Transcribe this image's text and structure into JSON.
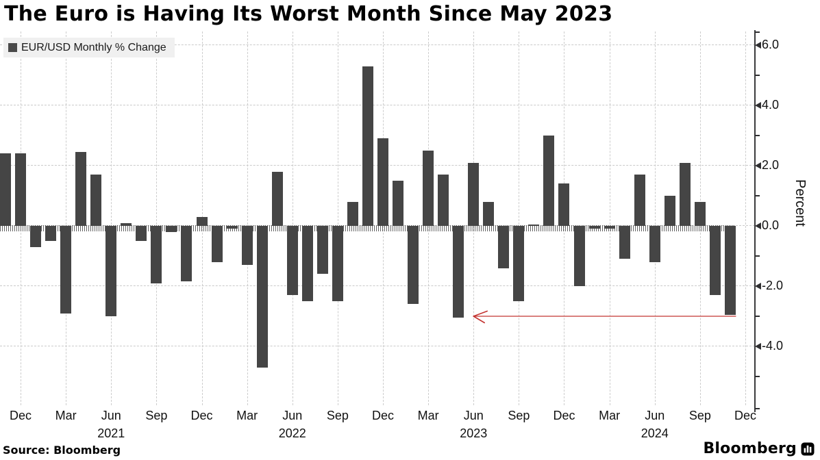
{
  "title": "The Euro is Having Its Worst Month Since May 2023",
  "legend": {
    "label": "EUR/USD Monthly % Change",
    "swatch_color": "#4a4a4a"
  },
  "source": "Source: Bloomberg",
  "brand": {
    "name": "Bloomberg",
    "icon": "bloomberg-chart-icon"
  },
  "chart_data": {
    "type": "bar",
    "series_name": "EUR/USD Monthly % Change",
    "ylabel": "Percent",
    "ylim": [
      -5.9,
      6.5
    ],
    "grid": "dashed horizontal and vertical",
    "legend_position": "top-left",
    "bar_color": "#454545",
    "ymajor": [
      6.0,
      4.0,
      2.0,
      0.0,
      -2.0,
      -4.0
    ],
    "ymajor_labels": [
      "6.0",
      "4.0",
      "2.0",
      "0.0",
      "-2.0",
      "-4.0"
    ],
    "yminor": [
      5.0,
      3.0,
      1.0,
      -1.0,
      -3.0,
      -5.0
    ],
    "x_ticks": [
      {
        "label": "Dec"
      },
      {
        "label": "Mar"
      },
      {
        "label": "Jun",
        "year": "2021"
      },
      {
        "label": "Sep"
      },
      {
        "label": "Dec"
      },
      {
        "label": "Mar"
      },
      {
        "label": "Jun",
        "year": "2022"
      },
      {
        "label": "Sep"
      },
      {
        "label": "Dec"
      },
      {
        "label": "Mar"
      },
      {
        "label": "Jun",
        "year": "2023"
      },
      {
        "label": "Sep"
      },
      {
        "label": "Dec"
      },
      {
        "label": "Mar"
      },
      {
        "label": "Jun",
        "year": "2024"
      },
      {
        "label": "Sep"
      },
      {
        "label": "Dec"
      }
    ],
    "months": [
      "Nov 2020",
      "Dec 2020",
      "Jan 2021",
      "Feb 2021",
      "Mar 2021",
      "Apr 2021",
      "May 2021",
      "Jun 2021",
      "Jul 2021",
      "Aug 2021",
      "Sep 2021",
      "Oct 2021",
      "Nov 2021",
      "Dec 2021",
      "Jan 2022",
      "Feb 2022",
      "Mar 2022",
      "Apr 2022",
      "May 2022",
      "Jun 2022",
      "Jul 2022",
      "Aug 2022",
      "Sep 2022",
      "Oct 2022",
      "Nov 2022",
      "Dec 2022",
      "Jan 2023",
      "Feb 2023",
      "Mar 2023",
      "Apr 2023",
      "May 2023",
      "Jun 2023",
      "Jul 2023",
      "Aug 2023",
      "Sep 2023",
      "Oct 2023",
      "Nov 2023",
      "Dec 2023",
      "Jan 2024",
      "Feb 2024",
      "Mar 2024",
      "Apr 2024",
      "May 2024",
      "Jun 2024",
      "Jul 2024",
      "Aug 2024",
      "Sep 2024",
      "Oct 2024",
      "Nov 2024"
    ],
    "values": [
      2.4,
      2.4,
      -0.7,
      -0.5,
      -2.9,
      2.45,
      1.7,
      -3.0,
      0.1,
      -0.5,
      -1.9,
      -0.2,
      -1.85,
      0.3,
      -1.2,
      -0.1,
      -1.3,
      -4.7,
      1.8,
      -2.3,
      -2.5,
      -1.6,
      -2.5,
      0.8,
      5.3,
      2.9,
      1.5,
      -2.6,
      2.5,
      1.7,
      -3.05,
      2.1,
      0.8,
      -1.4,
      -2.5,
      0.05,
      3.0,
      1.4,
      -2.0,
      -0.1,
      -0.1,
      -1.1,
      1.7,
      -1.2,
      1.0,
      2.1,
      0.8,
      -2.3,
      -2.95
    ],
    "annotation": {
      "type": "arrow",
      "y": -3.0,
      "from_month": "Nov 2024",
      "to_month": "May 2023",
      "color": "#c43431",
      "meaning": "points from Nov 2024 bar back to May 2023, the last month with a comparable decline"
    }
  }
}
